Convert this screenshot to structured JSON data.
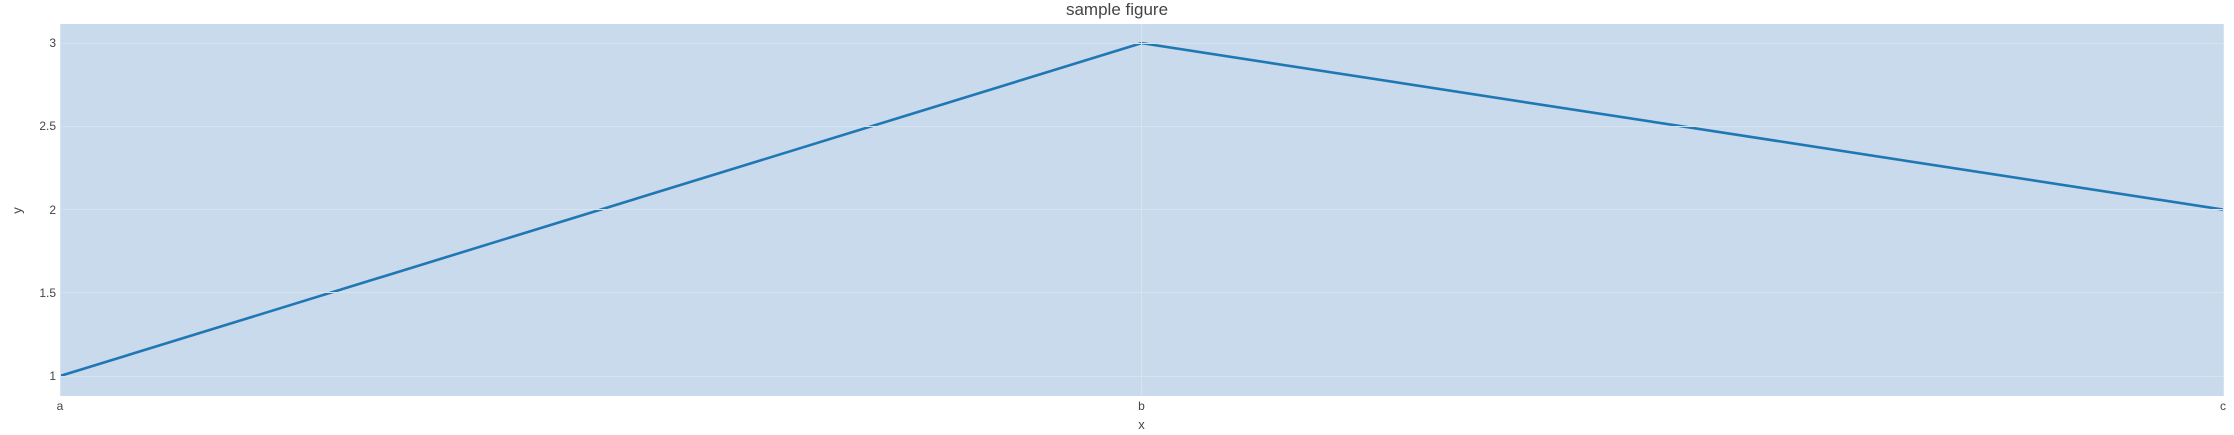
{
  "figure": {
    "title": "sample figure"
  },
  "chart_data": {
    "type": "line",
    "title": "sample figure",
    "x": [
      "a",
      "b",
      "c"
    ],
    "series": [
      {
        "name": "y",
        "values": [
          1,
          3,
          2
        ]
      }
    ],
    "xlabel": "x",
    "ylabel": "y",
    "ytick_labels": [
      "1",
      "1.5",
      "2",
      "2.5",
      "3"
    ],
    "ytick_values": [
      1,
      1.5,
      2,
      2.5,
      3
    ],
    "ylim": [
      0.88,
      3.115
    ],
    "grid": true,
    "legend": false,
    "colors": {
      "line": "#1f77b4",
      "plot_bg": "#c8daeb",
      "grid": "#d6e3f0",
      "text": "#444444",
      "paper_bg": "#ffffff"
    }
  }
}
